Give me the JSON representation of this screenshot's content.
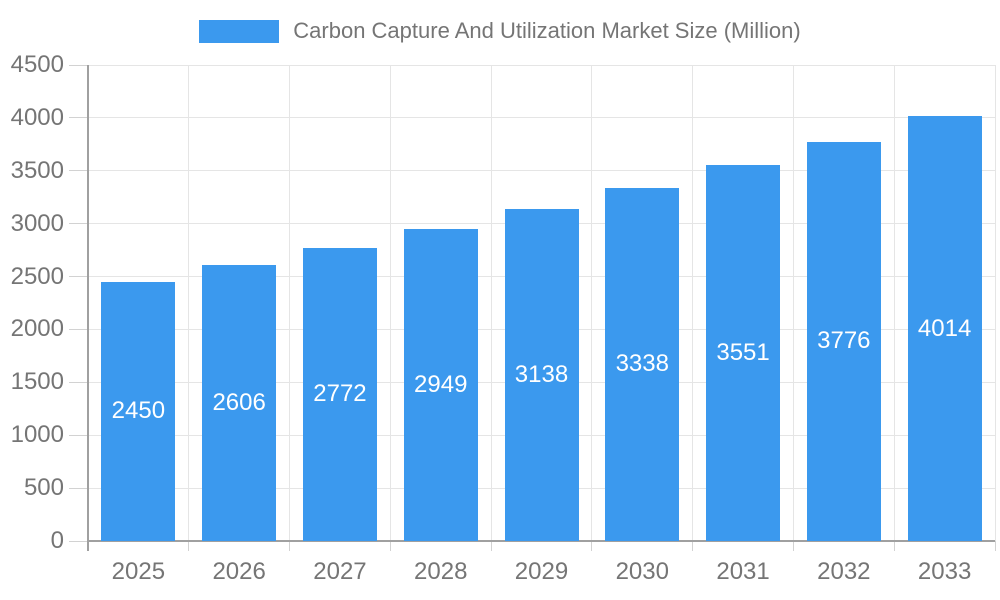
{
  "chart_data": {
    "type": "bar",
    "title": "Carbon Capture And Utilization Market Size (Million)",
    "legend": {
      "label": "Carbon Capture And Utilization Market Size (Million)",
      "position": "top"
    },
    "categories": [
      "2025",
      "2026",
      "2027",
      "2028",
      "2029",
      "2030",
      "2031",
      "2032",
      "2033"
    ],
    "values": [
      2450,
      2606,
      2772,
      2949,
      3138,
      3338,
      3551,
      3776,
      4014
    ],
    "xlabel": "",
    "ylabel": "",
    "ylim": [
      0,
      4500
    ],
    "yticks": [
      0,
      500,
      1000,
      1500,
      2000,
      2500,
      3000,
      3500,
      4000,
      4500
    ],
    "grid": true,
    "value_labels": "centered-white-inside-bars",
    "colors": {
      "bar": "#3b99ee",
      "grid": "#e5e5e5",
      "tick": "#d2d2d2",
      "axis": "#a0a0a0",
      "label": "#757575",
      "value_label": "#ffffff",
      "background": "#ffffff"
    }
  }
}
